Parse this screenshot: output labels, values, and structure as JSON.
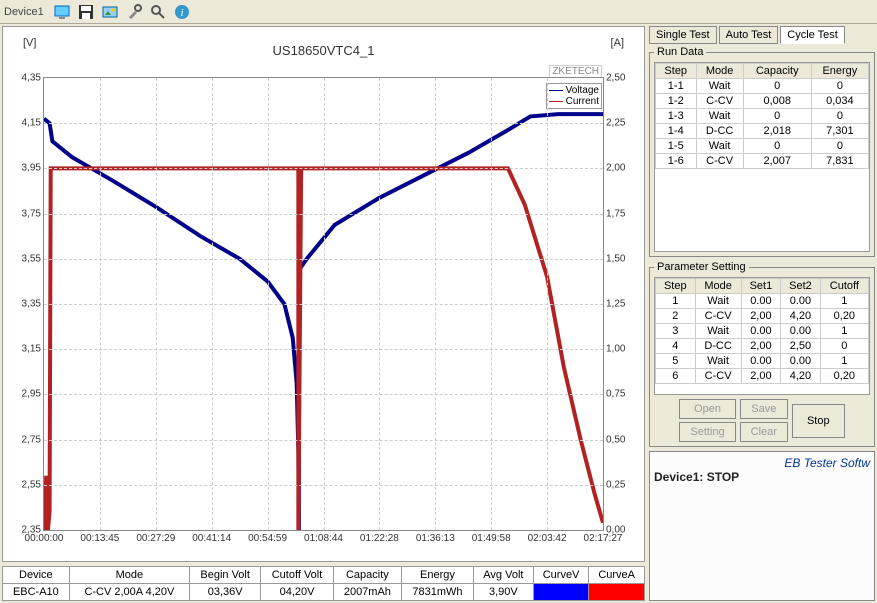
{
  "toolbar": {
    "device_label": "Device1"
  },
  "chart": {
    "title": "US18650VTC4_1",
    "brand": "ZKETECH",
    "y_left_label": "[V]",
    "y_right_label": "[A]",
    "legend": {
      "voltage": "Voltage",
      "current": "Current"
    },
    "voltage_color": "#00008b",
    "current_color": "#b22222",
    "grid_color": "#cccccc",
    "y_left": {
      "min": 2.35,
      "max": 4.35,
      "ticks": [
        "4,35",
        "4,15",
        "3,95",
        "3,75",
        "3,55",
        "3,35",
        "3,15",
        "2,95",
        "2,75",
        "2,55",
        "2,35"
      ]
    },
    "y_right": {
      "min": 0.0,
      "max": 2.5,
      "ticks": [
        "2,50",
        "2,25",
        "2,00",
        "1,75",
        "1,50",
        "1,25",
        "1,00",
        "0,75",
        "0,50",
        "0,25",
        "0,00"
      ]
    },
    "x_ticks": [
      "00:00:00",
      "00:13:45",
      "00:27:29",
      "00:41:14",
      "00:54:59",
      "01:08:44",
      "01:22:28",
      "01:36:13",
      "01:49:58",
      "02:03:42",
      "02:17:27"
    ],
    "voltage_series": [
      [
        0.0,
        4.17
      ],
      [
        0.01,
        4.15
      ],
      [
        0.015,
        4.07
      ],
      [
        0.05,
        4.0
      ],
      [
        0.12,
        3.9
      ],
      [
        0.2,
        3.78
      ],
      [
        0.28,
        3.65
      ],
      [
        0.35,
        3.55
      ],
      [
        0.4,
        3.45
      ],
      [
        0.43,
        3.35
      ],
      [
        0.445,
        3.2
      ],
      [
        0.452,
        3.0
      ],
      [
        0.455,
        2.7
      ],
      [
        0.456,
        2.35
      ],
      [
        0.456,
        3.5
      ],
      [
        0.47,
        3.55
      ],
      [
        0.52,
        3.7
      ],
      [
        0.6,
        3.82
      ],
      [
        0.68,
        3.92
      ],
      [
        0.76,
        4.02
      ],
      [
        0.83,
        4.12
      ],
      [
        0.87,
        4.18
      ],
      [
        0.92,
        4.19
      ],
      [
        1.0,
        4.19
      ]
    ],
    "current_series": [
      [
        0.0,
        0.0
      ],
      [
        0.004,
        0.3
      ],
      [
        0.007,
        0.0
      ],
      [
        0.01,
        0.1
      ],
      [
        0.012,
        2.0
      ],
      [
        0.455,
        2.0
      ],
      [
        0.455,
        0.0
      ],
      [
        0.46,
        2.0
      ],
      [
        0.46,
        2.0
      ],
      [
        0.83,
        2.0
      ],
      [
        0.86,
        1.8
      ],
      [
        0.9,
        1.4
      ],
      [
        0.93,
        0.9
      ],
      [
        0.96,
        0.5
      ],
      [
        0.985,
        0.2
      ],
      [
        1.0,
        0.04
      ]
    ]
  },
  "status": {
    "headers": [
      "Device",
      "Mode",
      "Begin Volt",
      "Cutoff Volt",
      "Capacity",
      "Energy",
      "Avg Volt",
      "CurveV",
      "CurveA"
    ],
    "row": {
      "device": "EBC-A10",
      "mode": "C-CV  2,00A  4,20V",
      "begin_volt": "03,36V",
      "cutoff_volt": "04,20V",
      "capacity": "2007mAh",
      "energy": "7831mWh",
      "avg_volt": "3,90V",
      "curve_v_color": "#0000ff",
      "curve_a_color": "#ff0000"
    }
  },
  "tabs": {
    "single": "Single Test",
    "auto": "Auto Test",
    "cycle": "Cycle Test"
  },
  "run_data": {
    "legend": "Run Data",
    "headers": [
      "Step",
      "Mode",
      "Capacity",
      "Energy"
    ],
    "rows": [
      [
        "1-1",
        "Wait",
        "0",
        "0"
      ],
      [
        "1-2",
        "C-CV",
        "0,008",
        "0,034"
      ],
      [
        "1-3",
        "Wait",
        "0",
        "0"
      ],
      [
        "1-4",
        "D-CC",
        "2,018",
        "7,301"
      ],
      [
        "1-5",
        "Wait",
        "0",
        "0"
      ],
      [
        "1-6",
        "C-CV",
        "2,007",
        "7,831"
      ]
    ]
  },
  "param": {
    "legend": "Parameter Setting",
    "headers": [
      "Step",
      "Mode",
      "Set1",
      "Set2",
      "Cutoff"
    ],
    "rows": [
      [
        "1",
        "Wait",
        "0.00",
        "0.00",
        "1"
      ],
      [
        "2",
        "C-CV",
        "2,00",
        "4,20",
        "0,20"
      ],
      [
        "3",
        "Wait",
        "0.00",
        "0.00",
        "1"
      ],
      [
        "4",
        "D-CC",
        "2,00",
        "2,50",
        "0"
      ],
      [
        "5",
        "Wait",
        "0.00",
        "0.00",
        "1"
      ],
      [
        "6",
        "C-CV",
        "2,00",
        "4,20",
        "0,20"
      ]
    ]
  },
  "buttons": {
    "open": "Open",
    "save": "Save",
    "setting": "Setting",
    "clear": "Clear",
    "stop": "Stop"
  },
  "log": {
    "title": "EB Tester Softw",
    "line": "Device1: STOP"
  }
}
